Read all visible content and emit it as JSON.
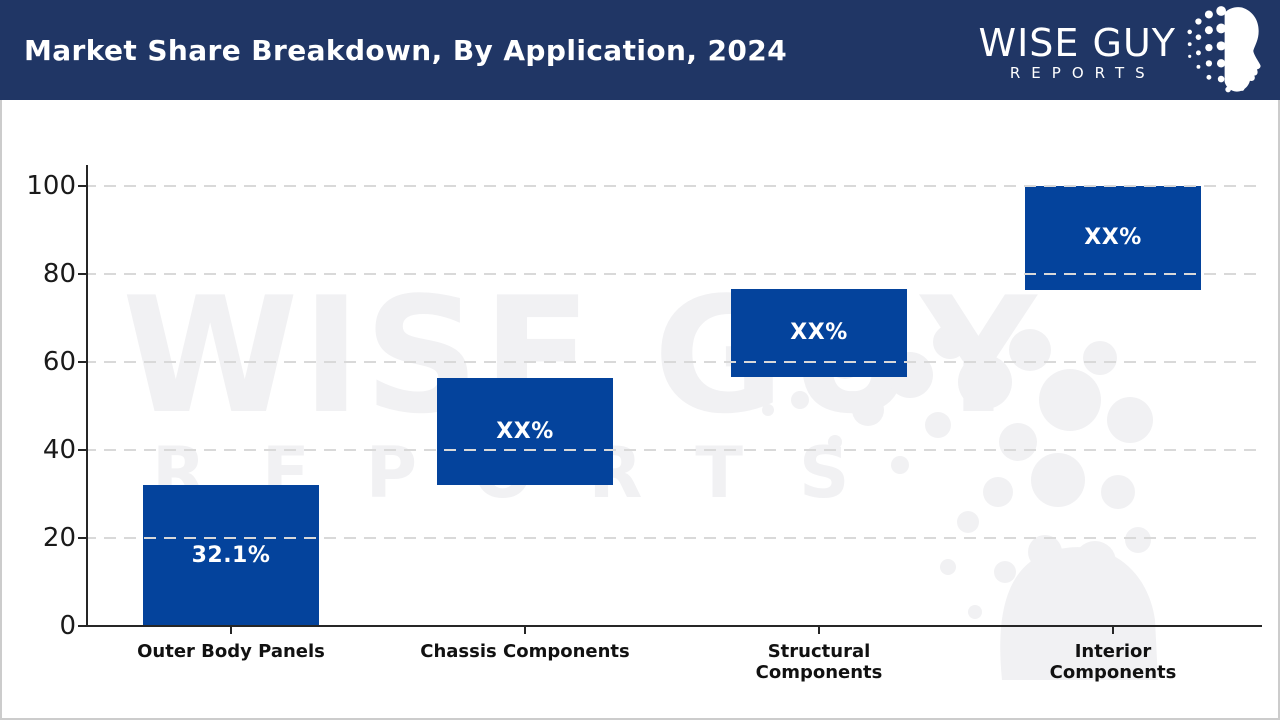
{
  "header": {
    "title": "Market Share Breakdown, By Application, 2024",
    "logo": {
      "line1": "WISE GUY",
      "line2": "REPORTS"
    }
  },
  "watermark": {
    "line1": "WISE GUY",
    "line2": "REPORTS"
  },
  "colors": {
    "header_bg": "#203665",
    "bar": "#04439c",
    "grid": "#d9d9d9",
    "axis": "#262626",
    "watermark": "#f1f1f3",
    "bar_label_text": "#ffffff"
  },
  "chart_data": {
    "type": "bar",
    "subtype": "waterfall",
    "title": "Market Share Breakdown, By Application, 2024",
    "categories": [
      "Outer Body Panels",
      "Chassis Components",
      "Structural Components",
      "Interior Components"
    ],
    "categories_wrapped": [
      [
        "Outer Body Panels"
      ],
      [
        "Chassis Components"
      ],
      [
        "Structural",
        "Components"
      ],
      [
        "Interior",
        "Components"
      ]
    ],
    "bars": [
      {
        "category": "Outer Body Panels",
        "label": "32.1%",
        "start": 0,
        "end": 32.1
      },
      {
        "category": "Chassis Components",
        "label": "XX%",
        "start": 32.1,
        "end": 56.4
      },
      {
        "category": "Structural Components",
        "label": "XX%",
        "start": 56.6,
        "end": 76.6
      },
      {
        "category": "Interior Components",
        "label": "XX%",
        "start": 76.4,
        "end": 100
      }
    ],
    "yticks": [
      0,
      20,
      40,
      60,
      80,
      100
    ],
    "ylim": [
      0,
      100
    ],
    "xlabel": "",
    "ylabel": "",
    "grid": "horizontal-dashed",
    "legend": null
  }
}
